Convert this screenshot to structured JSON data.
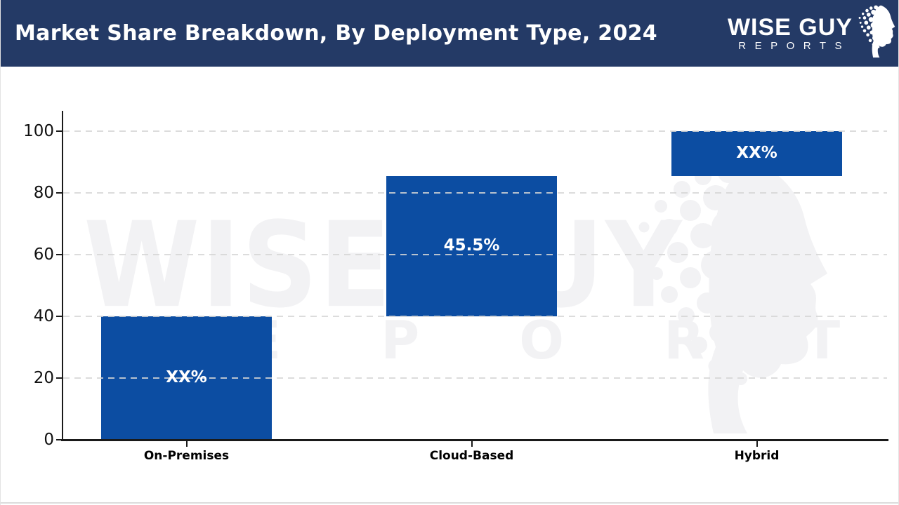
{
  "header": {
    "title": "Market Share Breakdown, By Deployment Type, 2024",
    "brand": {
      "name": "WISE GUY",
      "sub": "REPORTS"
    }
  },
  "watermark": {
    "line1": "WISE GUY",
    "line2": "R E P O R T S"
  },
  "chart_data": {
    "type": "bar",
    "subtype": "waterfall",
    "title": "Market Share Breakdown, By Deployment Type, 2024",
    "categories": [
      "On-Premises",
      "Cloud-Based",
      "Hybrid"
    ],
    "segments": [
      {
        "category": "On-Premises",
        "start": 0,
        "end": 40,
        "value_label": "XX%"
      },
      {
        "category": "Cloud-Based",
        "start": 40,
        "end": 85.5,
        "value_label": "45.5%"
      },
      {
        "category": "Hybrid",
        "start": 85.5,
        "end": 100,
        "value_label": "XX%"
      }
    ],
    "xlabel": "",
    "ylabel": "",
    "yticks": [
      0,
      20,
      40,
      60,
      80,
      100
    ],
    "ylim": [
      0,
      106.5
    ],
    "grid": "horizontal-dashed",
    "legend": "none",
    "colors": {
      "bar": "#0C4DA2",
      "grid": "#D9D9D9",
      "axis": "#1A1A1A",
      "bar_label": "#FFFFFF",
      "header_bg": "#243A66",
      "watermark": "#F2F2F4"
    }
  }
}
